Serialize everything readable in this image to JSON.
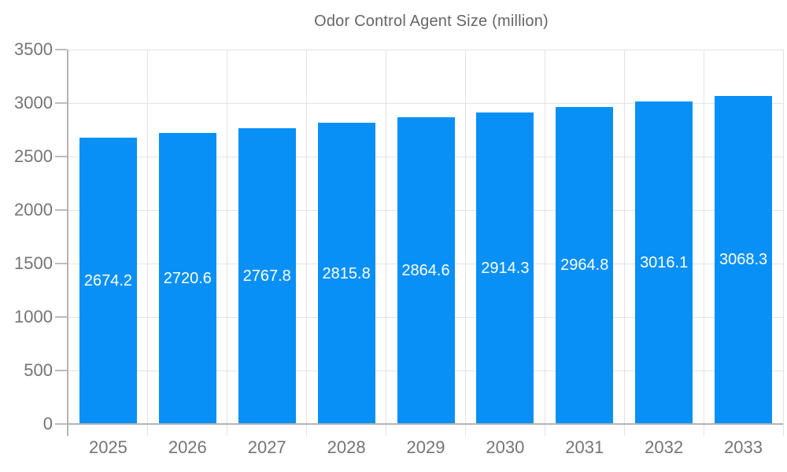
{
  "colors": {
    "bar": "#0890f6",
    "value_label": "#ffffff",
    "gridline": "#e3e3e3",
    "axis_line": "#b3b3b3",
    "axis_text": "#757575",
    "legend_text": "#666666",
    "background": "#ffffff"
  },
  "legend": {
    "swatch_icon": "series-color-swatch",
    "label": "Odor Control Agent Size (million)"
  },
  "chart_data": {
    "type": "bar",
    "title": "Odor Control Agent Size (million)",
    "series": [
      {
        "name": "Odor Control Agent Size (million)",
        "values": [
          2674.2,
          2720.6,
          2767.8,
          2815.8,
          2864.6,
          2914.3,
          2964.8,
          3016.1,
          3068.3
        ]
      }
    ],
    "categories": [
      "2025",
      "2026",
      "2027",
      "2028",
      "2029",
      "2030",
      "2031",
      "2032",
      "2033"
    ],
    "value_labels": [
      "2674.2",
      "2720.6",
      "2767.8",
      "2815.8",
      "2864.6",
      "2914.3",
      "2964.8",
      "3016.1",
      "3068.3"
    ],
    "xlabel": "",
    "ylabel": "",
    "ylim": [
      0,
      3500
    ],
    "yticks": [
      0,
      500,
      1000,
      1500,
      2000,
      2500,
      3000,
      3500
    ],
    "ytick_labels": [
      "0",
      "500",
      "1000",
      "1500",
      "2000",
      "2500",
      "3000",
      "3500"
    ],
    "grid": true,
    "legend_position": "top",
    "value_label_position": "bar-center"
  }
}
